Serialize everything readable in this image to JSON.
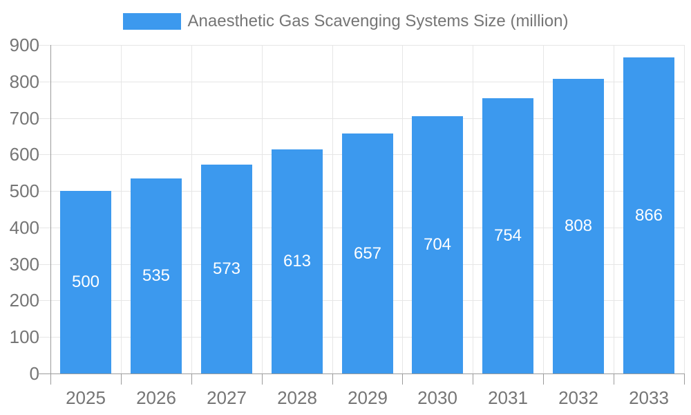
{
  "legend": {
    "label": "Anaesthetic Gas Scavenging Systems Size (million)"
  },
  "chart_data": {
    "type": "bar",
    "title": "Anaesthetic Gas Scavenging Systems Size (million)",
    "categories": [
      "2025",
      "2026",
      "2027",
      "2028",
      "2029",
      "2030",
      "2031",
      "2032",
      "2033"
    ],
    "series": [
      {
        "name": "Anaesthetic Gas Scavenging Systems Size (million)",
        "values": [
          500,
          535,
          573,
          613,
          657,
          704,
          754,
          808,
          866
        ]
      }
    ],
    "values": [
      500,
      535,
      573,
      613,
      657,
      704,
      754,
      808,
      866
    ],
    "data_labels": [
      "500",
      "535",
      "573",
      "613",
      "657",
      "704",
      "754",
      "808",
      "866"
    ],
    "xlabel": "",
    "ylabel": "",
    "ylim": [
      0,
      900
    ],
    "ytick_step": 100,
    "yticks": [
      0,
      100,
      200,
      300,
      400,
      500,
      600,
      700,
      800,
      900
    ],
    "grid": true,
    "legend_position": "top-center",
    "colors": {
      "bar": "#3C99EE",
      "grid": "#E6E6E6",
      "axis": "#9B9B9B",
      "text": "#757575",
      "bar_label": "#FFFFFF",
      "background": "#FFFFFF"
    }
  }
}
